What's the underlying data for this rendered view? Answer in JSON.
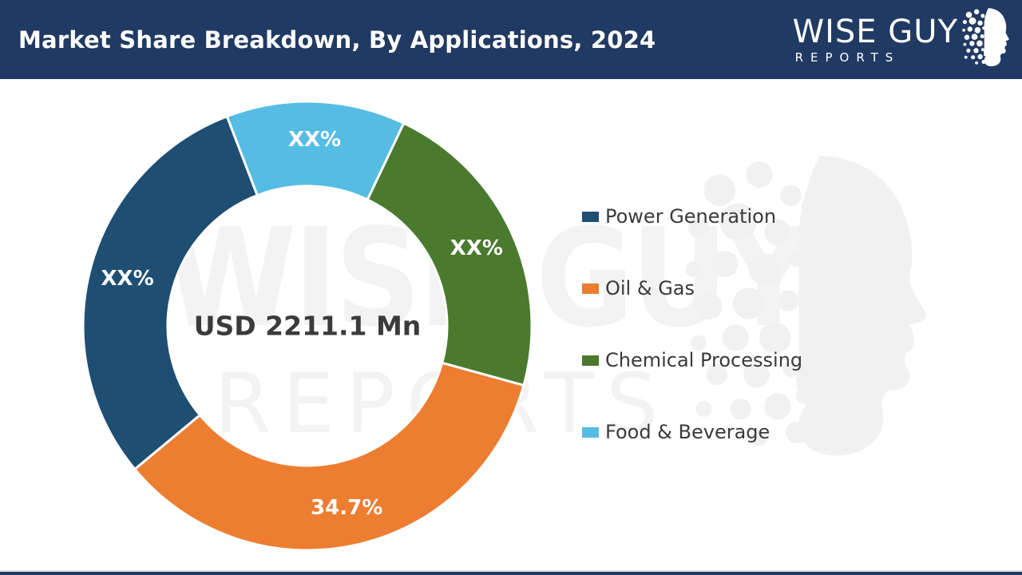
{
  "header": {
    "title": "Market Share Breakdown, By Applications, 2024",
    "logo": {
      "line1": "WISE GUY",
      "line2": "REPORTS"
    }
  },
  "watermark": {
    "line1": "WISE GUY",
    "line2": "REPORTS"
  },
  "chart_data": {
    "type": "pie",
    "subtype": "donut",
    "title": "Market Share Breakdown, By Applications, 2024",
    "center_label": "USD 2211.1 Mn",
    "start_angle_deg": 111,
    "direction": "counterclockwise",
    "legend_position": "right",
    "series": [
      {
        "name": "Power Generation",
        "value_pct": 30.2,
        "display_label": "XX%",
        "color": "#1F4E73"
      },
      {
        "name": "Oil & Gas",
        "value_pct": 34.7,
        "display_label": "34.7%",
        "color": "#ED7D31"
      },
      {
        "name": "Chemical Processing",
        "value_pct": 22.2,
        "display_label": "XX%",
        "color": "#4A7A2E"
      },
      {
        "name": "Food & Beverage",
        "value_pct": 12.9,
        "display_label": "XX%",
        "color": "#55BCE4"
      }
    ]
  },
  "colors": {
    "header_bg": "#213A63",
    "legend_text": "#3A3A3A",
    "center_text": "#3B3B3B",
    "watermark": "#F3F3F3",
    "separator": "#FFFFFF"
  }
}
